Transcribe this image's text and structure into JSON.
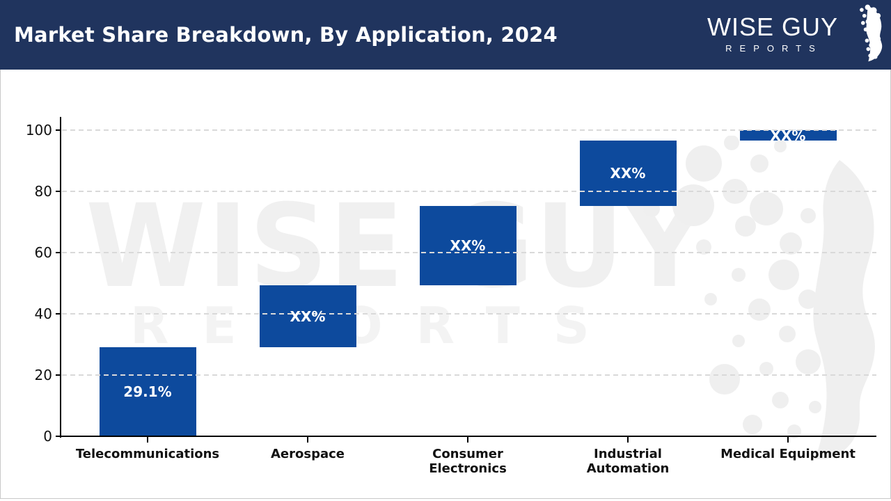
{
  "header": {
    "title": "Market Share Breakdown, By Application, 2024",
    "logo": {
      "line1": "WISE GUY",
      "line2": "REPORTS"
    }
  },
  "watermark": {
    "line1": "WISE GUY",
    "line2": "REPORTS"
  },
  "chart_data": {
    "type": "bar",
    "subtype": "floating-waterfall",
    "title": "Market Share Breakdown, By Application, 2024",
    "categories": [
      "Telecommunications",
      "Aerospace",
      "Consumer Electronics",
      "Industrial Automation",
      "Medical Equipment"
    ],
    "category_lines": [
      [
        "Telecommunications"
      ],
      [
        "Aerospace"
      ],
      [
        "Consumer",
        "Electronics"
      ],
      [
        "Industrial",
        "Automation"
      ],
      [
        "Medical Equipment"
      ]
    ],
    "segments": [
      {
        "category": "Telecommunications",
        "start": 0,
        "end": 29.1,
        "label": "29.1%"
      },
      {
        "category": "Aerospace",
        "start": 29.1,
        "end": 49.3,
        "label": "XX%"
      },
      {
        "category": "Consumer Electronics",
        "start": 49.3,
        "end": 75.2,
        "label": "XX%"
      },
      {
        "category": "Industrial Automation",
        "start": 75.2,
        "end": 96.5,
        "label": "XX%"
      },
      {
        "category": "Medical Equipment",
        "start": 96.5,
        "end": 100,
        "label": "XX%"
      }
    ],
    "xlabel": "",
    "ylabel": "",
    "ylim": [
      0,
      104
    ],
    "yticks": [
      0,
      20,
      40,
      60,
      80,
      100
    ],
    "grid": "horizontal-dashed",
    "legend": "none",
    "bar_color": "#0d4a9d",
    "label_color": "#ffffff",
    "axis_color": "#000000",
    "gridline_color": "#d9d9d9"
  },
  "colors": {
    "header_bg": "#20345e",
    "chart_bg": "#ffffff",
    "frame": "#c8c8c8",
    "watermark": "#f0f0f0"
  }
}
